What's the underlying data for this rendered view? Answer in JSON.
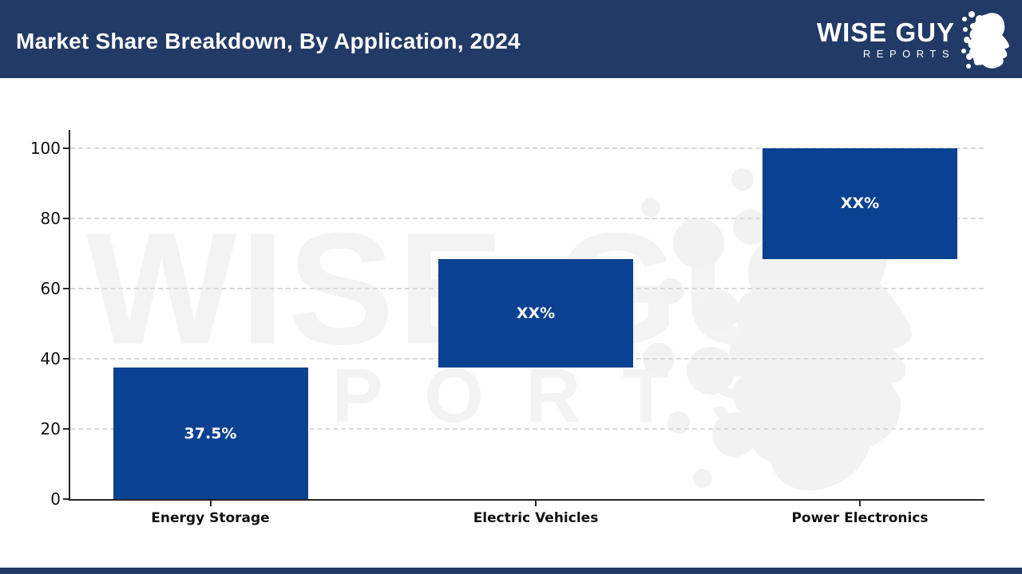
{
  "header": {
    "title": "Market Share Breakdown, By Application, 2024",
    "logo": {
      "wordmark": "WISE GUY",
      "subtext": "REPORTS"
    }
  },
  "watermark": {
    "line1": "WISE GUY",
    "line2": "REPORTS"
  },
  "chart_data": {
    "type": "bar",
    "subtype": "floating-waterfall",
    "title": "Market Share Breakdown, By Application, 2024",
    "categories": [
      "Energy Storage",
      "Electric Vehicles",
      "Power Electronics"
    ],
    "bars": [
      {
        "category": "Energy Storage",
        "start": 0,
        "end": 37.5,
        "label": "37.5%"
      },
      {
        "category": "Electric Vehicles",
        "start": 37.5,
        "end": 68.5,
        "label": "XX%"
      },
      {
        "category": "Power Electronics",
        "start": 68.5,
        "end": 100,
        "label": "XX%"
      }
    ],
    "xlabel": "",
    "ylabel": "",
    "ylim": [
      0,
      100
    ],
    "yticks": [
      0,
      20,
      40,
      60,
      80,
      100
    ],
    "grid": "horizontal-dashed",
    "legend": "none",
    "bar_color": "#0b4191",
    "bar_label_color": "#ffffff"
  },
  "colors": {
    "header_navy": "#223a66",
    "bar_blue": "#0b4191",
    "gridline": "#d9d9d9",
    "axis": "#262626",
    "watermark": "#f3f3f3"
  }
}
